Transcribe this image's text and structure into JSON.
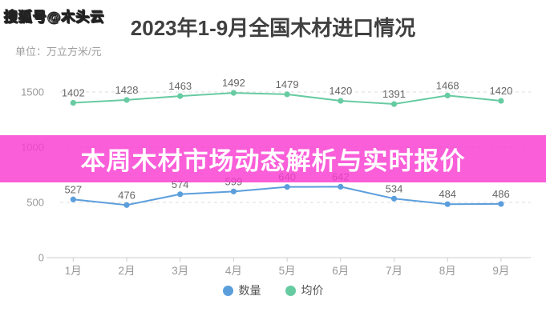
{
  "watermark": "搜狐号@木头云",
  "header": {
    "title": "2023年1-9月全国木材进口情况",
    "unit_label": "单位：万立方米/元"
  },
  "banner": {
    "text": "本周木材市场动态解析与实时报价",
    "bg_color": "#f93ad1",
    "text_color": "#ffffff"
  },
  "legend": {
    "items": [
      {
        "label": "数量",
        "color": "#5b9edc",
        "icon": "circle-dot-icon"
      },
      {
        "label": "均价",
        "color": "#67cba2",
        "icon": "circle-dot-icon"
      }
    ]
  },
  "chart_data": {
    "type": "line",
    "title": "2023年1-9月全国木材进口情况",
    "unit": "万立方米/元",
    "categories": [
      "1月",
      "2月",
      "3月",
      "4月",
      "5月",
      "6月",
      "7月",
      "8月",
      "9月"
    ],
    "series": [
      {
        "name": "数量",
        "color": "#5b9edc",
        "values": [
          527,
          476,
          574,
          599,
          640,
          642,
          534,
          484,
          486
        ]
      },
      {
        "name": "均价",
        "color": "#67cba2",
        "values": [
          1402,
          1428,
          1463,
          1492,
          1479,
          1420,
          1391,
          1468,
          1420
        ]
      }
    ],
    "xlabel": "",
    "ylabel": "",
    "ylim": [
      0,
      1500
    ],
    "yticks": [
      0,
      500,
      1000,
      1500
    ],
    "grid": "horizontal-dashed",
    "legend_position": "bottom",
    "value_labels": true,
    "colors": {
      "grid_line": "#dddddd",
      "axis_line": "#cccccc",
      "tick_label": "#999999",
      "value_label": "#666666"
    }
  }
}
